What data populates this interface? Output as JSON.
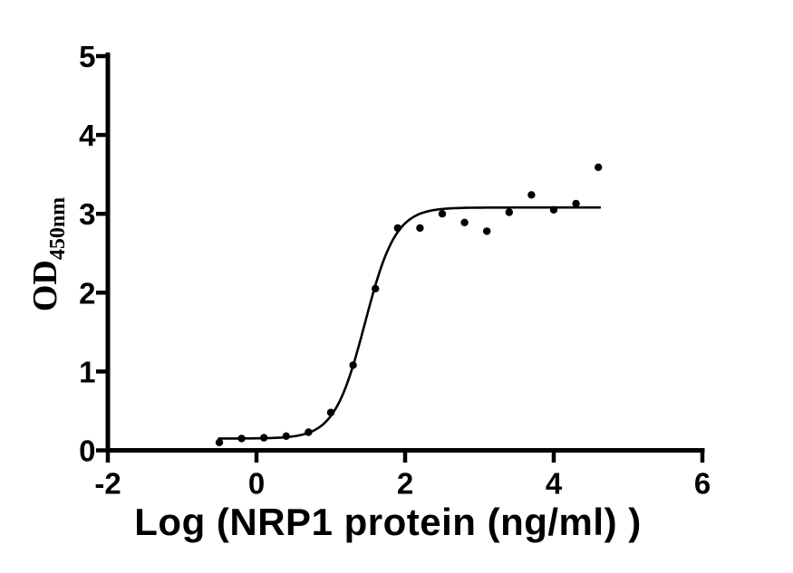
{
  "page": {
    "background_color": "#ffffff",
    "foreground_color": "#000000"
  },
  "chart_data": {
    "type": "scatter",
    "subtype": "sigmoidal-dose-response-fit",
    "title": "Log（NRP1 protein（ng/ml） ）",
    "ylabel_main": "OD",
    "ylabel_sub": "450nm",
    "xlim": [
      -2,
      6
    ],
    "ylim": [
      0,
      5
    ],
    "x_ticks": [
      -2,
      0,
      2,
      4,
      6
    ],
    "x_tick_labels": [
      "-2",
      "0",
      "2",
      "4",
      "6"
    ],
    "y_ticks": [
      0,
      1,
      2,
      3,
      4,
      5
    ],
    "y_tick_labels": [
      "0",
      "1",
      "2",
      "3",
      "4",
      "5"
    ],
    "grid": false,
    "legend": false,
    "marker_color": "#000000",
    "curve_color": "#000000",
    "points": [
      {
        "x": -0.5,
        "y": 0.1
      },
      {
        "x": -0.2,
        "y": 0.15
      },
      {
        "x": 0.1,
        "y": 0.16
      },
      {
        "x": 0.4,
        "y": 0.18
      },
      {
        "x": 0.7,
        "y": 0.23
      },
      {
        "x": 1.0,
        "y": 0.48
      },
      {
        "x": 1.3,
        "y": 1.08
      },
      {
        "x": 1.6,
        "y": 2.05
      },
      {
        "x": 1.9,
        "y": 2.82
      },
      {
        "x": 2.2,
        "y": 2.82
      },
      {
        "x": 2.5,
        "y": 3.0
      },
      {
        "x": 2.8,
        "y": 2.89
      },
      {
        "x": 3.1,
        "y": 2.78
      },
      {
        "x": 3.4,
        "y": 3.02
      },
      {
        "x": 3.7,
        "y": 3.24
      },
      {
        "x": 4.0,
        "y": 3.05
      },
      {
        "x": 4.3,
        "y": 3.13
      },
      {
        "x": 4.6,
        "y": 3.59
      }
    ],
    "fit_curve": {
      "model": "4PL",
      "bottom": 0.15,
      "top": 3.08,
      "log_ec50": 1.46,
      "hill_slope": 2.1,
      "x_start": -0.505,
      "x_end": 4.62
    }
  }
}
